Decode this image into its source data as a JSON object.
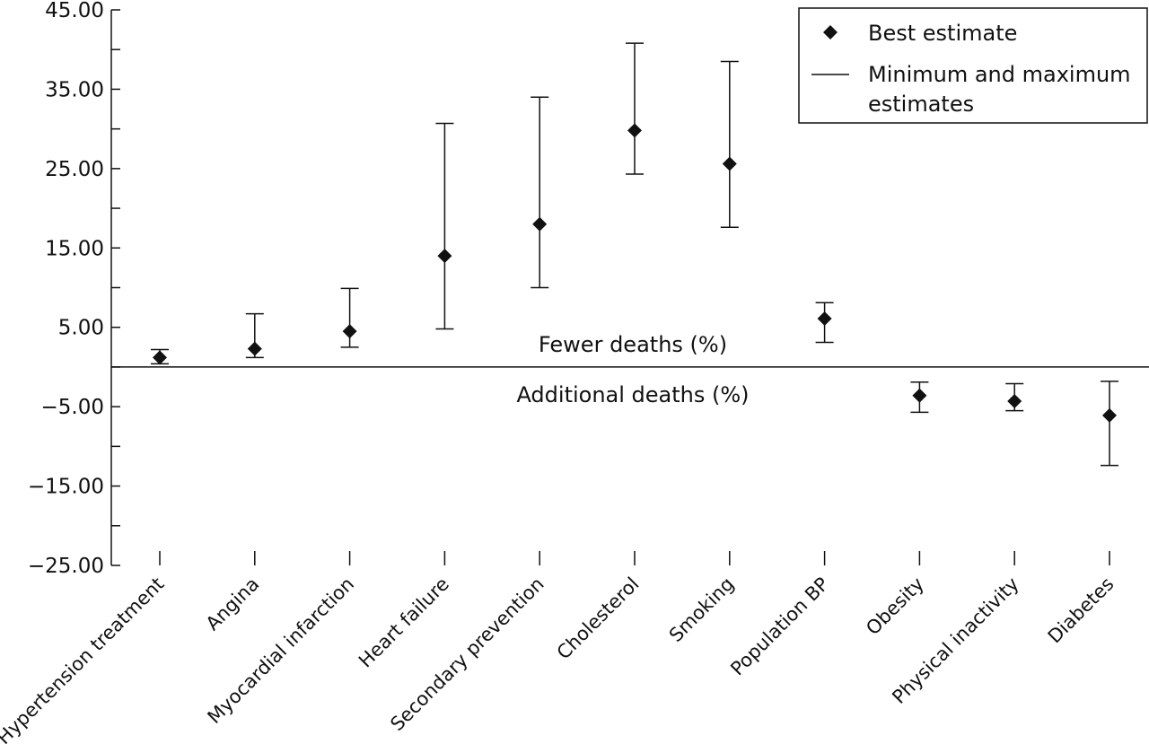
{
  "chart_data": {
    "type": "scatter",
    "title": "",
    "xlabel": "",
    "ylabel": "",
    "ylim": [
      -25,
      45
    ],
    "y_ticks": [
      "45.00",
      "35.00",
      "25.00",
      "15.00",
      "5.00",
      "−5.00",
      "−15.00",
      "−25.00"
    ],
    "categories": [
      "Hypertension treatment",
      "Angina",
      "Myocardial infarction",
      "Heart failure",
      "Secondary prevention",
      "Cholesterol",
      "Smoking",
      "Population BP",
      "Obesity",
      "Physical inactivity",
      "Diabetes"
    ],
    "series": [
      {
        "name": "Best estimate",
        "values": [
          1.2,
          2.3,
          4.5,
          14.0,
          18.0,
          29.8,
          25.6,
          6.1,
          -3.6,
          -4.3,
          -6.1
        ]
      },
      {
        "name": "Minimum and maximum estimates",
        "min": [
          0.4,
          1.2,
          2.5,
          4.8,
          10.0,
          24.3,
          17.6,
          3.1,
          -5.7,
          -5.5,
          -12.4
        ],
        "max": [
          2.2,
          6.7,
          9.9,
          30.7,
          34.0,
          40.8,
          38.5,
          8.1,
          -1.9,
          -2.1,
          -1.8
        ]
      }
    ],
    "annotations": {
      "above": "Fewer deaths (%)",
      "below": "Additional deaths (%)"
    },
    "legend": {
      "position": "top-right",
      "marker_label": "Best estimate",
      "line_label_line1": "Minimum and maximum",
      "line_label_line2": "estimates"
    },
    "grid": false
  }
}
